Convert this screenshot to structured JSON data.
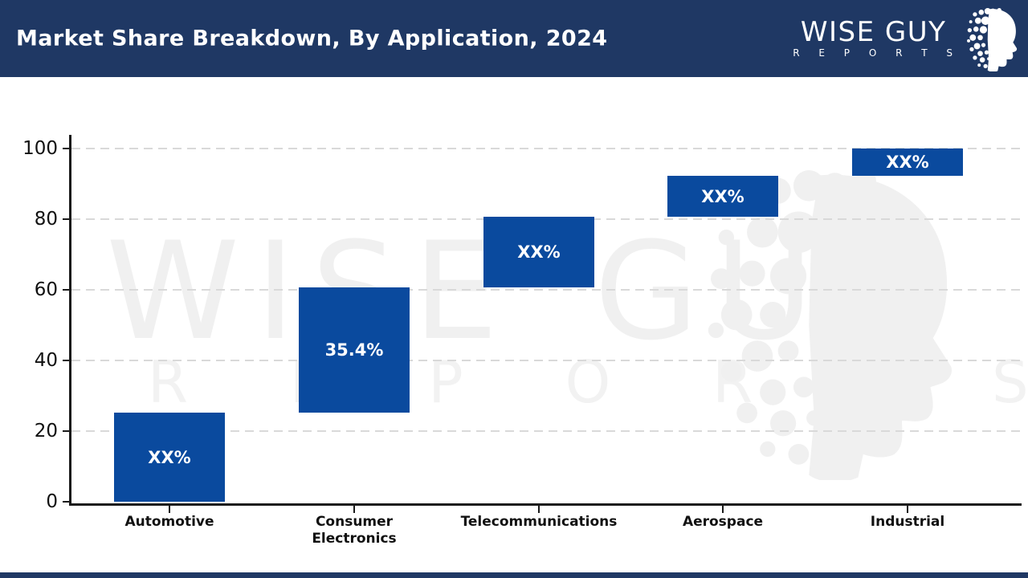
{
  "header": {
    "title": "Market Share Breakdown, By Application, 2024",
    "background_color": "#1f3864",
    "logo": {
      "line1": "WISE GUY",
      "line2": "R E P O R T S"
    }
  },
  "watermark": {
    "line1": "WISE GUY",
    "line2": "R E P O R T S"
  },
  "footer": {
    "background_color": "#1f3864"
  },
  "chart_data": {
    "type": "bar",
    "variant": "waterfall",
    "title": "Market Share Breakdown, By Application, 2024",
    "categories": [
      "Automotive",
      "Consumer Electronics",
      "Telecommunications",
      "Aerospace",
      "Industrial"
    ],
    "category_label_lines": [
      [
        "Automotive"
      ],
      [
        "Consumer",
        "Electronics"
      ],
      [
        "Telecommunications"
      ],
      [
        "Aerospace"
      ],
      [
        "Industrial"
      ]
    ],
    "segments": [
      {
        "category": "Automotive",
        "start": 0,
        "end": 25.2,
        "label": "XX%"
      },
      {
        "category": "Consumer Electronics",
        "start": 25.2,
        "end": 60.6,
        "label": "35.4%"
      },
      {
        "category": "Telecommunications",
        "start": 60.6,
        "end": 80.6,
        "label": "XX%"
      },
      {
        "category": "Aerospace",
        "start": 80.6,
        "end": 92.2,
        "label": "XX%"
      },
      {
        "category": "Industrial",
        "start": 92.2,
        "end": 100,
        "label": "XX%"
      }
    ],
    "yticks": [
      0,
      20,
      40,
      60,
      80,
      100
    ],
    "ylim": [
      0,
      104
    ],
    "xlabel": "",
    "ylabel": "",
    "grid": true,
    "gridline_color": "#d9d9d9",
    "legend": false,
    "bar_color": "#0a4a9e",
    "value_label_color": "#ffffff"
  }
}
